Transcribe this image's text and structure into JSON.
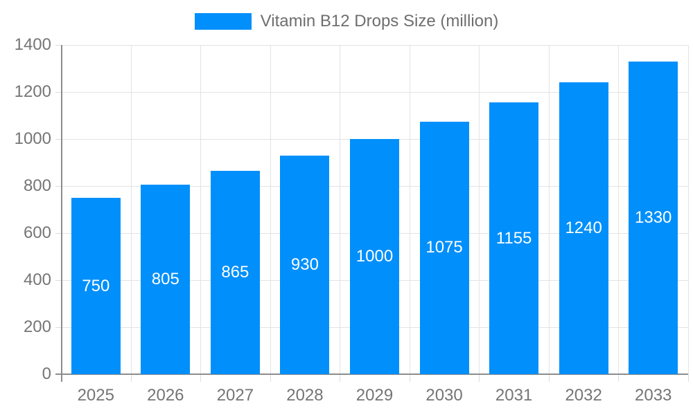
{
  "chart_data": {
    "type": "bar",
    "title": "Vitamin B12 Drops Size (million)",
    "legend": {
      "label": "Vitamin B12 Drops Size (million)",
      "position": "top"
    },
    "categories": [
      "2025",
      "2026",
      "2027",
      "2028",
      "2029",
      "2030",
      "2031",
      "2032",
      "2033"
    ],
    "series": [
      {
        "name": "Vitamin B12 Drops Size (million)",
        "values": [
          750,
          805,
          865,
          930,
          1000,
          1075,
          1155,
          1240,
          1330
        ]
      }
    ],
    "xlabel": "",
    "ylabel": "",
    "ylim": [
      0,
      1400
    ],
    "yticks": [
      0,
      200,
      400,
      600,
      800,
      1000,
      1200,
      1400
    ],
    "grid": true,
    "data_labels_inside_bars": true,
    "colors": {
      "bar": "#008FFB",
      "data_label": "#FFFFFF",
      "axis_text": "#757575",
      "legend_text": "#6E6E6E",
      "grid_line": "#E3E3E3",
      "tick_line": "#DCDCDC",
      "axis_line": "#8C8C8C",
      "background": "#FFFFFF"
    }
  }
}
